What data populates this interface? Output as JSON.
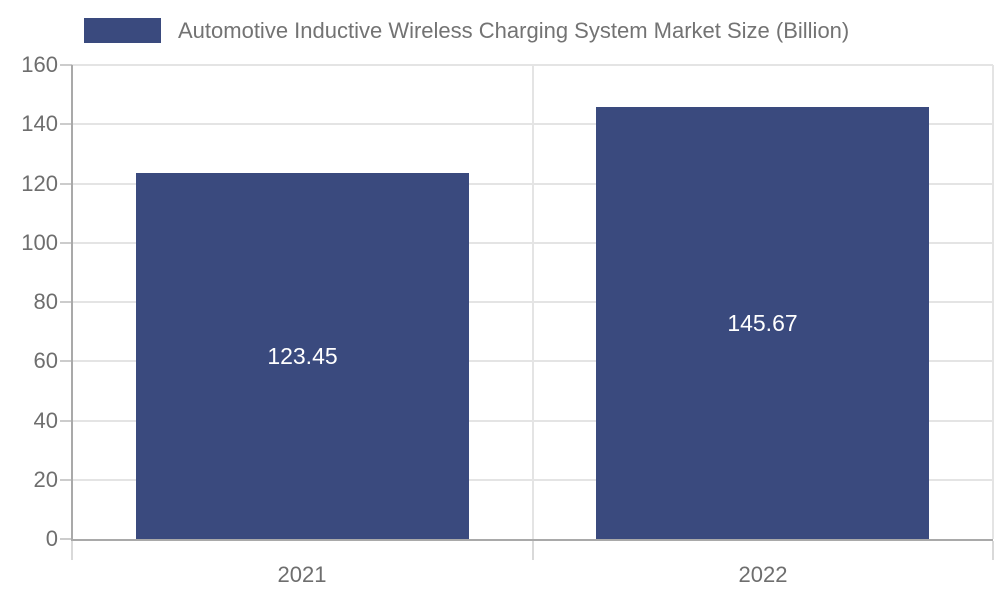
{
  "chart_data": {
    "type": "bar",
    "title": "Automotive Inductive Wireless Charging System Market Size (Billion)",
    "legend": [
      {
        "label": "Automotive Inductive Wireless Charging System Market Size (Billion)",
        "color": "#3a4a7e"
      }
    ],
    "legend_position": "top-left",
    "categories": [
      "2021",
      "2022"
    ],
    "series": [
      {
        "name": "Automotive Inductive Wireless Charging System Market Size (Billion)",
        "values": [
          123.45,
          145.67
        ],
        "data_labels": [
          "123.45",
          "145.67"
        ],
        "color": "#3a4a7e"
      }
    ],
    "xlabel": "",
    "ylabel": "",
    "ylim": [
      0,
      160
    ],
    "yticks": [
      0,
      20,
      40,
      60,
      80,
      100,
      120,
      140,
      160
    ],
    "grid": true
  },
  "style": {
    "bar_color": "#3a4a7e",
    "axis_line_color": "#a9a9a9",
    "grid_color": "#e4e4e4",
    "tick_text_color": "#6e6e6e",
    "legend_text_color": "#737373",
    "value_label_color": "#ffffff",
    "background": "#ffffff"
  }
}
